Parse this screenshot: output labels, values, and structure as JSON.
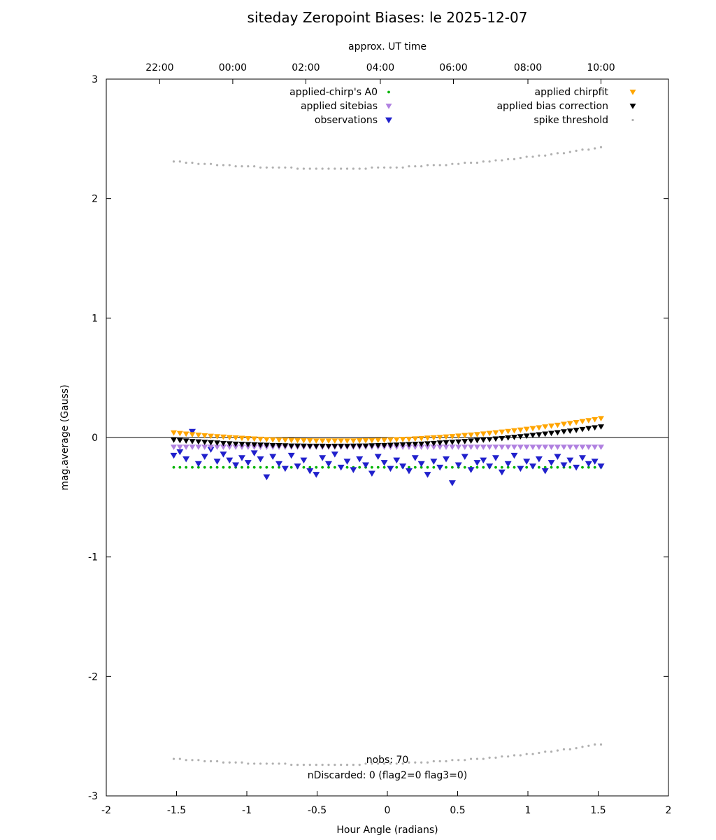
{
  "chart_data": {
    "type": "scatter",
    "title": "siteday Zeropoint Biases:  le  2025-12-07",
    "xlabel": "Hour Angle (radians)",
    "ylabel": "mag.average (Gauss)",
    "xlim": [
      -2,
      2
    ],
    "ylim": [
      -3,
      3
    ],
    "grid": false,
    "x_ticks": [
      -2,
      -1.5,
      -1,
      -0.5,
      0,
      0.5,
      1,
      1.5,
      2
    ],
    "x_tick_labels": [
      "-2",
      "-1.5",
      "-1",
      "-0.5",
      "0",
      "0.5",
      "1",
      "1.5",
      "2"
    ],
    "y_ticks": [
      -3,
      -2,
      -1,
      0,
      1,
      2,
      3
    ],
    "y_tick_labels": [
      "-3",
      "-2",
      "-1",
      "0",
      "1",
      "2",
      "3"
    ],
    "top_axis": {
      "label": "approx. UT time",
      "ticks": [
        {
          "label": "22:00",
          "x": -1.62
        },
        {
          "label": "00:00",
          "x": -1.1
        },
        {
          "label": "02:00",
          "x": -0.58
        },
        {
          "label": "04:00",
          "x": -0.05
        },
        {
          "label": "06:00",
          "x": 0.47
        },
        {
          "label": "08:00",
          "x": 1.0
        },
        {
          "label": "10:00",
          "x": 1.52
        }
      ]
    },
    "annotations": {
      "nobs": "nobs: 70",
      "ndiscarded": "nDiscarded: 0  (flag2=0  flag3=0)"
    },
    "zero_line": 0,
    "x": [
      -1.52,
      -1.476,
      -1.432,
      -1.388,
      -1.344,
      -1.3,
      -1.256,
      -1.211,
      -1.167,
      -1.123,
      -1.079,
      -1.035,
      -0.991,
      -0.947,
      -0.903,
      -0.859,
      -0.815,
      -0.771,
      -0.727,
      -0.683,
      -0.639,
      -0.595,
      -0.551,
      -0.506,
      -0.462,
      -0.418,
      -0.374,
      -0.33,
      -0.286,
      -0.242,
      -0.198,
      -0.154,
      -0.11,
      -0.066,
      -0.022,
      0.022,
      0.066,
      0.11,
      0.154,
      0.198,
      0.242,
      0.286,
      0.33,
      0.374,
      0.418,
      0.462,
      0.506,
      0.551,
      0.595,
      0.639,
      0.683,
      0.727,
      0.771,
      0.815,
      0.859,
      0.903,
      0.947,
      0.991,
      1.035,
      1.079,
      1.123,
      1.167,
      1.211,
      1.256,
      1.3,
      1.344,
      1.388,
      1.432,
      1.476,
      1.52
    ],
    "series": [
      {
        "id": "spike-threshold-upper",
        "name": "spike threshold",
        "color": "#b0b0b0",
        "marker": "dot",
        "size": 1.6,
        "values": [
          2.31,
          2.31,
          2.3,
          2.3,
          2.29,
          2.29,
          2.29,
          2.28,
          2.28,
          2.28,
          2.27,
          2.27,
          2.27,
          2.27,
          2.26,
          2.26,
          2.26,
          2.26,
          2.26,
          2.26,
          2.25,
          2.25,
          2.25,
          2.25,
          2.25,
          2.25,
          2.25,
          2.25,
          2.25,
          2.25,
          2.25,
          2.25,
          2.26,
          2.26,
          2.26,
          2.26,
          2.26,
          2.26,
          2.27,
          2.27,
          2.27,
          2.28,
          2.28,
          2.28,
          2.28,
          2.29,
          2.29,
          2.3,
          2.3,
          2.3,
          2.31,
          2.31,
          2.32,
          2.32,
          2.33,
          2.33,
          2.34,
          2.35,
          2.35,
          2.36,
          2.36,
          2.37,
          2.38,
          2.38,
          2.39,
          2.4,
          2.41,
          2.41,
          2.42,
          2.43
        ]
      },
      {
        "id": "spike-threshold-lower",
        "name": "spike threshold",
        "color": "#b0b0b0",
        "marker": "dot",
        "size": 1.6,
        "values": [
          -2.69,
          -2.69,
          -2.7,
          -2.7,
          -2.7,
          -2.71,
          -2.71,
          -2.71,
          -2.72,
          -2.72,
          -2.72,
          -2.72,
          -2.73,
          -2.73,
          -2.73,
          -2.73,
          -2.73,
          -2.73,
          -2.73,
          -2.74,
          -2.74,
          -2.74,
          -2.74,
          -2.74,
          -2.74,
          -2.74,
          -2.74,
          -2.74,
          -2.74,
          -2.74,
          -2.74,
          -2.73,
          -2.73,
          -2.73,
          -2.73,
          -2.73,
          -2.73,
          -2.73,
          -2.72,
          -2.72,
          -2.72,
          -2.72,
          -2.71,
          -2.71,
          -2.71,
          -2.7,
          -2.7,
          -2.7,
          -2.69,
          -2.69,
          -2.69,
          -2.68,
          -2.68,
          -2.67,
          -2.67,
          -2.66,
          -2.66,
          -2.65,
          -2.65,
          -2.64,
          -2.63,
          -2.63,
          -2.62,
          -2.61,
          -2.61,
          -2.6,
          -2.59,
          -2.58,
          -2.57,
          -2.57
        ]
      },
      {
        "id": "applied-chirps-a0",
        "name": "applied-chirp's A0",
        "color": "#00b400",
        "marker": "dot",
        "size": 1.9,
        "values": [
          -0.25,
          -0.25,
          -0.25,
          -0.25,
          -0.25,
          -0.25,
          -0.25,
          -0.25,
          -0.25,
          -0.25,
          -0.25,
          -0.25,
          -0.25,
          -0.25,
          -0.25,
          -0.25,
          -0.25,
          -0.25,
          -0.25,
          -0.25,
          -0.25,
          -0.25,
          -0.25,
          -0.25,
          -0.25,
          -0.25,
          -0.25,
          -0.25,
          -0.25,
          -0.25,
          -0.25,
          -0.25,
          -0.25,
          -0.25,
          -0.25,
          -0.25,
          -0.25,
          -0.25,
          -0.25,
          -0.25,
          -0.25,
          -0.25,
          -0.25,
          -0.25,
          -0.25,
          -0.25,
          -0.25,
          -0.25,
          -0.25,
          -0.25,
          -0.25,
          -0.25,
          -0.25,
          -0.25,
          -0.25,
          -0.25,
          -0.25,
          -0.25,
          -0.25,
          -0.25,
          -0.25,
          -0.25,
          -0.25,
          -0.25,
          -0.25,
          -0.25,
          -0.25,
          -0.25,
          -0.25,
          -0.25
        ]
      },
      {
        "id": "observations",
        "name": "observations",
        "color": "#2020cc",
        "marker": "triangle",
        "size": 5,
        "values": [
          -0.15,
          -0.12,
          -0.18,
          0.05,
          -0.22,
          -0.16,
          -0.1,
          -0.2,
          -0.14,
          -0.19,
          -0.23,
          -0.17,
          -0.21,
          -0.13,
          -0.18,
          -0.33,
          -0.16,
          -0.22,
          -0.26,
          -0.15,
          -0.24,
          -0.19,
          -0.28,
          -0.31,
          -0.17,
          -0.22,
          -0.14,
          -0.25,
          -0.2,
          -0.27,
          -0.18,
          -0.23,
          -0.3,
          -0.16,
          -0.21,
          -0.26,
          -0.19,
          -0.24,
          -0.28,
          -0.17,
          -0.22,
          -0.31,
          -0.2,
          -0.25,
          -0.18,
          -0.38,
          -0.23,
          -0.16,
          -0.27,
          -0.21,
          -0.19,
          -0.24,
          -0.17,
          -0.29,
          -0.22,
          -0.15,
          -0.26,
          -0.2,
          -0.24,
          -0.18,
          -0.28,
          -0.21,
          -0.16,
          -0.23,
          -0.19,
          -0.25,
          -0.17,
          -0.22,
          -0.2,
          -0.24
        ]
      },
      {
        "id": "applied-sitebias",
        "name": "applied sitebias",
        "color": "#b080e0",
        "marker": "triangle",
        "size": 4.5,
        "values": [
          -0.08,
          -0.08,
          -0.08,
          -0.08,
          -0.08,
          -0.08,
          -0.08,
          -0.08,
          -0.08,
          -0.08,
          -0.08,
          -0.08,
          -0.08,
          -0.08,
          -0.08,
          -0.08,
          -0.08,
          -0.08,
          -0.08,
          -0.08,
          -0.08,
          -0.08,
          -0.08,
          -0.08,
          -0.08,
          -0.08,
          -0.08,
          -0.08,
          -0.08,
          -0.08,
          -0.08,
          -0.08,
          -0.08,
          -0.08,
          -0.08,
          -0.08,
          -0.08,
          -0.08,
          -0.08,
          -0.08,
          -0.08,
          -0.08,
          -0.08,
          -0.08,
          -0.08,
          -0.08,
          -0.08,
          -0.08,
          -0.08,
          -0.08,
          -0.08,
          -0.08,
          -0.08,
          -0.08,
          -0.08,
          -0.08,
          -0.08,
          -0.08,
          -0.08,
          -0.08,
          -0.08,
          -0.08,
          -0.08,
          -0.08,
          -0.08,
          -0.08,
          -0.08,
          -0.08,
          -0.08,
          -0.08
        ]
      },
      {
        "id": "applied-bias-correction",
        "name": "applied bias correction",
        "color": "#000000",
        "marker": "triangle",
        "size": 4.5,
        "values": [
          -0.02,
          -0.024,
          -0.028,
          -0.032,
          -0.035,
          -0.039,
          -0.042,
          -0.045,
          -0.048,
          -0.051,
          -0.054,
          -0.056,
          -0.058,
          -0.06,
          -0.062,
          -0.064,
          -0.066,
          -0.067,
          -0.068,
          -0.07,
          -0.07,
          -0.071,
          -0.072,
          -0.072,
          -0.072,
          -0.073,
          -0.072,
          -0.072,
          -0.072,
          -0.071,
          -0.07,
          -0.07,
          -0.068,
          -0.067,
          -0.066,
          -0.064,
          -0.062,
          -0.06,
          -0.058,
          -0.056,
          -0.054,
          -0.051,
          -0.048,
          -0.045,
          -0.042,
          -0.039,
          -0.036,
          -0.032,
          -0.028,
          -0.024,
          -0.02,
          -0.016,
          -0.011,
          -0.007,
          -0.002,
          0.003,
          0.008,
          0.013,
          0.019,
          0.024,
          0.03,
          0.036,
          0.042,
          0.049,
          0.055,
          0.062,
          0.069,
          0.076,
          0.083,
          0.09
        ]
      },
      {
        "id": "applied-chirpfit",
        "name": "applied chirpfit",
        "color": "#ffa500",
        "marker": "triangle",
        "size": 4.5,
        "values": [
          0.04,
          0.035,
          0.03,
          0.025,
          0.021,
          0.016,
          0.012,
          0.008,
          0.005,
          0.001,
          -0.002,
          -0.005,
          -0.008,
          -0.011,
          -0.013,
          -0.016,
          -0.018,
          -0.02,
          -0.021,
          -0.023,
          -0.024,
          -0.025,
          -0.026,
          -0.027,
          -0.027,
          -0.027,
          -0.027,
          -0.027,
          -0.027,
          -0.027,
          -0.026,
          -0.025,
          -0.024,
          -0.022,
          -0.021,
          -0.019,
          -0.017,
          -0.015,
          -0.013,
          -0.01,
          -0.007,
          -0.004,
          -0.001,
          0.002,
          0.006,
          0.009,
          0.013,
          0.018,
          0.022,
          0.026,
          0.031,
          0.036,
          0.041,
          0.047,
          0.052,
          0.058,
          0.064,
          0.07,
          0.076,
          0.083,
          0.09,
          0.097,
          0.104,
          0.112,
          0.119,
          0.127,
          0.135,
          0.143,
          0.151,
          0.16
        ]
      }
    ],
    "legend": [
      {
        "label": "applied-chirp's A0",
        "color": "#00b400",
        "marker": "dot",
        "size": 1.9
      },
      {
        "label": "applied sitebias",
        "color": "#b080e0",
        "marker": "triangle",
        "size": 4.5
      },
      {
        "label": "observations",
        "color": "#2020cc",
        "marker": "triangle",
        "size": 5
      },
      {
        "label": "applied chirpfit",
        "color": "#ffa500",
        "marker": "triangle",
        "size": 4.5
      },
      {
        "label": "applied bias correction",
        "color": "#000000",
        "marker": "triangle",
        "size": 4.5
      },
      {
        "label": "spike threshold",
        "color": "#b0b0b0",
        "marker": "dot",
        "size": 1.6
      }
    ]
  }
}
